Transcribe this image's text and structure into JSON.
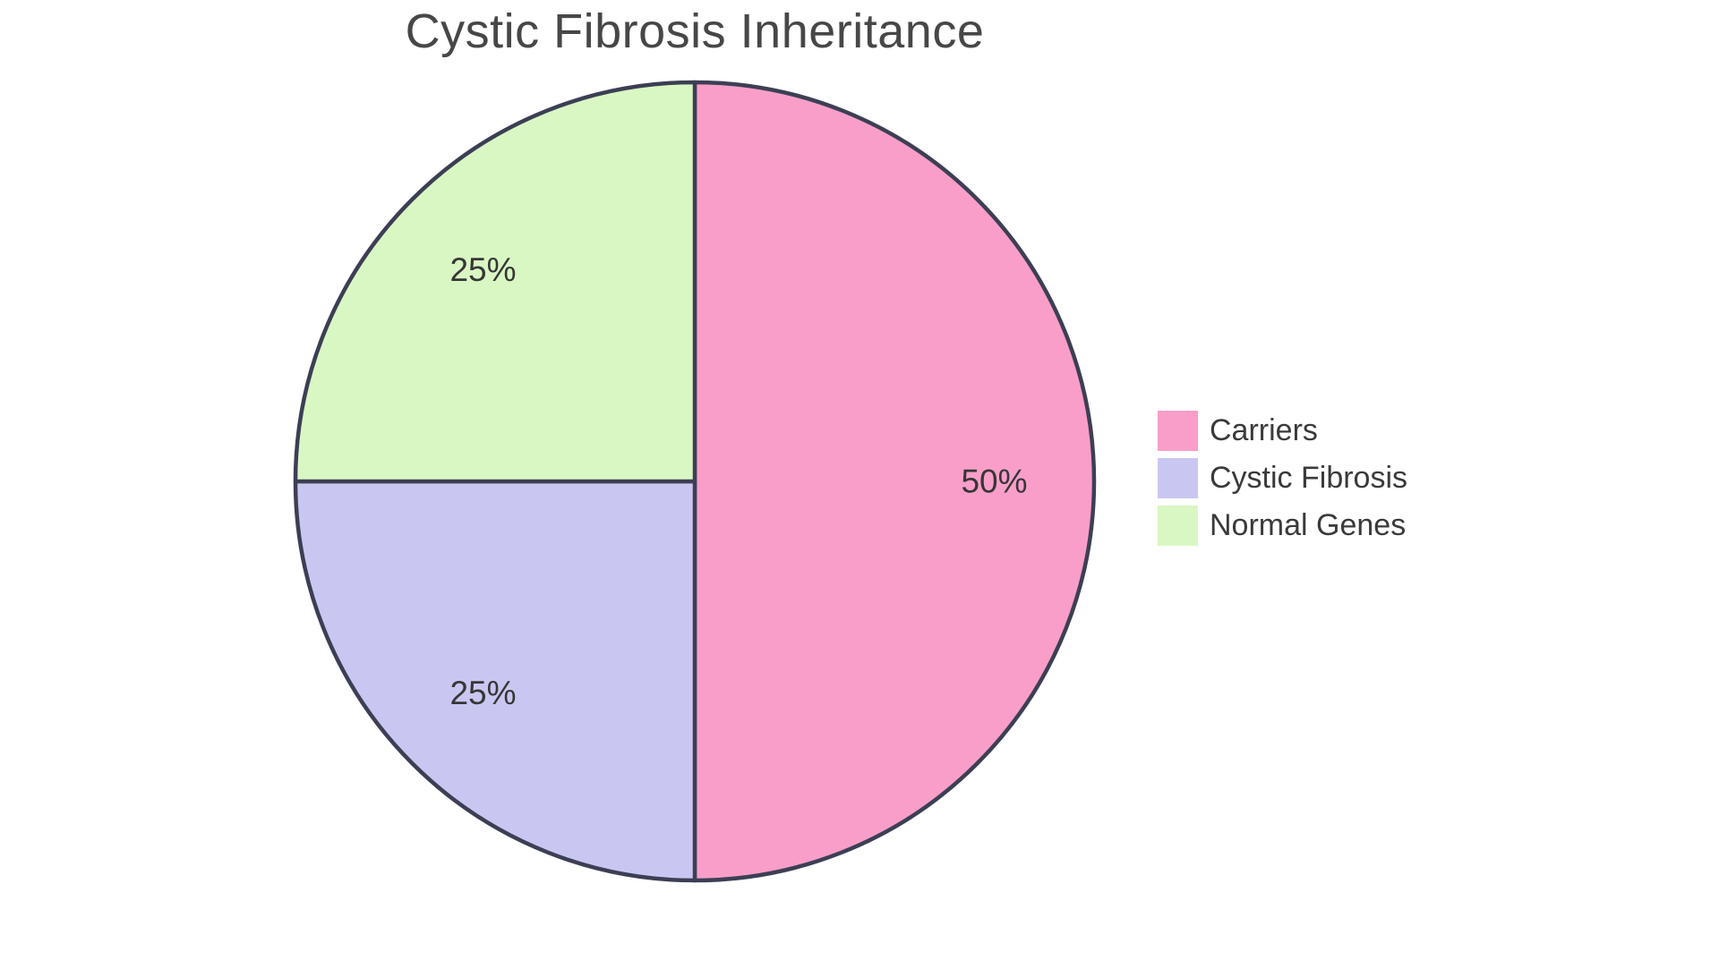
{
  "chart_data": {
    "type": "pie",
    "title": "Cystic Fibrosis Inheritance",
    "slices": [
      {
        "label": "Carriers",
        "value": 50,
        "display": "50%",
        "color": "#F99EC9"
      },
      {
        "label": "Cystic Fibrosis",
        "value": 25,
        "display": "25%",
        "color": "#C9C7F2"
      },
      {
        "label": "Normal Genes",
        "value": 25,
        "display": "25%",
        "color": "#D9F7C3"
      }
    ],
    "start_angle_deg": 0,
    "direction": "clockwise",
    "legend_position": "right",
    "legend_entries": [
      "Carriers",
      "Cystic Fibrosis",
      "Normal Genes"
    ],
    "colors": {
      "slice_outline": "#3C3F54",
      "title_text": "#474747",
      "slice_label_text": "#363636",
      "legend_text": "#3A3A3A",
      "background": "#FFFFFF"
    }
  }
}
